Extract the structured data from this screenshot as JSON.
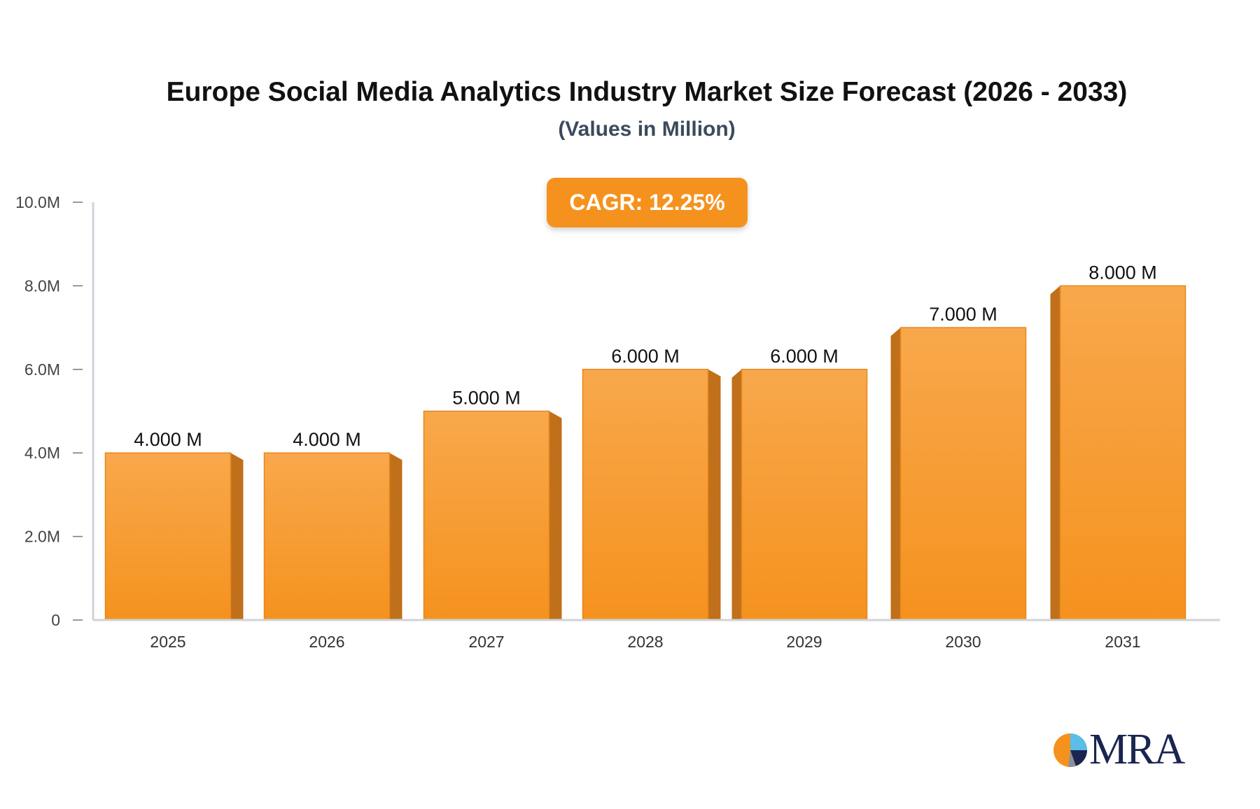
{
  "chart_data": {
    "type": "bar",
    "title": "Europe Social Media Analytics Industry Market Size Forecast (2026 - 2033)",
    "subtitle": "(Values in Million)",
    "annotation": "CAGR: 12.25%",
    "categories": [
      "2025",
      "2026",
      "2027",
      "2028",
      "2029",
      "2030",
      "2031"
    ],
    "values": [
      4.0,
      4.0,
      5.0,
      6.0,
      6.0,
      7.0,
      8.0
    ],
    "data_labels": [
      "4.000 M",
      "4.000 M",
      "5.000 M",
      "6.000 M",
      "6.000 M",
      "7.000 M",
      "8.000 M"
    ],
    "y_ticks": [
      0,
      2,
      4,
      6,
      8,
      10
    ],
    "y_tick_labels": [
      "0",
      "2.0M",
      "4.0M",
      "6.0M",
      "8.0M",
      "10.0M"
    ],
    "ylim": [
      0,
      10
    ],
    "xlabel": "",
    "ylabel": "",
    "grid": false,
    "bar_color": "#f5921e",
    "bar_side_color": "#c0701a"
  },
  "logo": {
    "text": "MRA"
  }
}
